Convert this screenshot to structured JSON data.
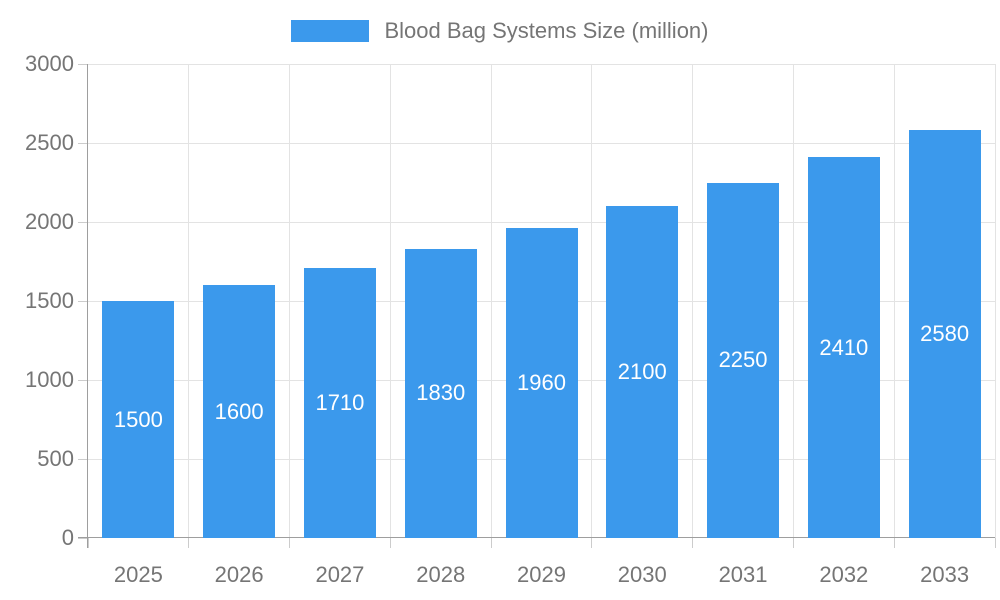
{
  "legend": {
    "label": "Blood Bag Systems Size (million)"
  },
  "colors": {
    "bar": "#3b99ec",
    "legend_text": "#757575",
    "axis_text": "#757575",
    "value_label_text": "#ffffff",
    "gridline": "#e3e3e3",
    "axis_line": "#9e9e9e",
    "tick": "#cccccc",
    "background": "#ffffff"
  },
  "chart_data": {
    "type": "bar",
    "title": "Blood Bag Systems Size (million)",
    "categories": [
      "2025",
      "2026",
      "2027",
      "2028",
      "2029",
      "2030",
      "2031",
      "2032",
      "2033"
    ],
    "values": [
      1500,
      1600,
      1710,
      1830,
      1960,
      2100,
      2250,
      2410,
      2580
    ],
    "value_labels": [
      "1500",
      "1600",
      "1710",
      "1830",
      "1960",
      "2100",
      "2250",
      "2410",
      "2580"
    ],
    "xlabel": "",
    "ylabel": "",
    "ylim": [
      0,
      3000
    ],
    "yticks": [
      0,
      500,
      1000,
      1500,
      2000,
      2500,
      3000
    ],
    "ytick_labels": [
      "0",
      "500",
      "1000",
      "1500",
      "2000",
      "2500",
      "3000"
    ],
    "grid": true,
    "legend_position": "top",
    "value_label_position": "inside-center"
  }
}
